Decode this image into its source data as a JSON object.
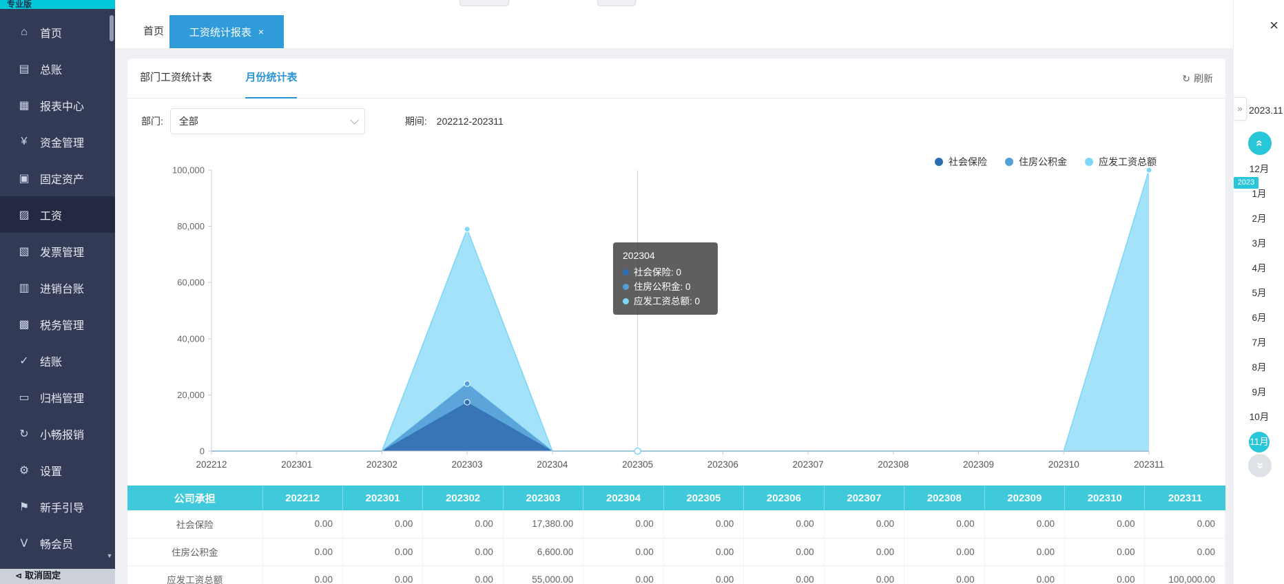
{
  "app": {
    "edition": "专业版",
    "close": "×",
    "collapse": "»"
  },
  "topbar": {
    "tabs": [
      {
        "label": "首页",
        "active": false
      },
      {
        "label": "工资统计报表",
        "active": true,
        "close": "×"
      }
    ]
  },
  "sidebar": {
    "items": [
      {
        "label": "首页",
        "icon": "home",
        "active": false
      },
      {
        "label": "总账",
        "icon": "general-ledger",
        "active": false
      },
      {
        "label": "报表中心",
        "icon": "report-center",
        "active": false
      },
      {
        "label": "资金管理",
        "icon": "fund-management",
        "active": false
      },
      {
        "label": "固定资产",
        "icon": "fixed-assets",
        "active": false
      },
      {
        "label": "工资",
        "icon": "salary",
        "active": true
      },
      {
        "label": "发票管理",
        "icon": "invoice-management",
        "active": false
      },
      {
        "label": "进销台账",
        "icon": "purchase-sales-ledger",
        "active": false
      },
      {
        "label": "税务管理",
        "icon": "tax-management",
        "active": false
      },
      {
        "label": "结账",
        "icon": "closing",
        "active": false
      },
      {
        "label": "归档管理",
        "icon": "archive-management",
        "active": false
      },
      {
        "label": "小畅报销",
        "icon": "reimbursement",
        "active": false
      },
      {
        "label": "设置",
        "icon": "settings",
        "active": false
      },
      {
        "label": "新手引导",
        "icon": "beginner-guide",
        "active": false
      },
      {
        "label": "畅会员",
        "icon": "member",
        "active": false
      }
    ],
    "pin_toggle": "取消固定"
  },
  "icon_glyphs": {
    "home": "⌂",
    "general-ledger": "▤",
    "report-center": "▦",
    "fund-management": "¥",
    "fixed-assets": "▣",
    "salary": "▨",
    "invoice-management": "▧",
    "purchase-sales-ledger": "▥",
    "tax-management": "▩",
    "closing": "✓",
    "archive-management": "▭",
    "reimbursement": "↻",
    "settings": "⚙",
    "beginner-guide": "⚑",
    "member": "Ⅴ",
    "pin": "⊲",
    "refresh": "↻",
    "scroll-down": "▼"
  },
  "report": {
    "sub_tabs": [
      {
        "label": "部门工资统计表",
        "active": false
      },
      {
        "label": "月份统计表",
        "active": true
      }
    ],
    "refresh_label": "刷新",
    "filters": {
      "department_label": "部门:",
      "department_value": "全部",
      "period_label": "期间:",
      "period_value": "202212-202311"
    }
  },
  "chart_data": {
    "type": "area",
    "stacked": true,
    "x": [
      "202212",
      "202301",
      "202302",
      "202303",
      "202304",
      "202305",
      "202306",
      "202307",
      "202308",
      "202309",
      "202310",
      "202311"
    ],
    "series": [
      {
        "name": "社会保险",
        "color": "#2d6eb3",
        "values": [
          0,
          0,
          0,
          17380,
          0,
          0,
          0,
          0,
          0,
          0,
          0,
          0
        ]
      },
      {
        "name": "住房公积金",
        "color": "#53a0d8",
        "values": [
          0,
          0,
          0,
          6600,
          0,
          0,
          0,
          0,
          0,
          0,
          0,
          0
        ]
      },
      {
        "name": "应发工资总额",
        "color": "#7fd7f7",
        "values": [
          0,
          0,
          0,
          55000,
          0,
          0,
          0,
          0,
          0,
          0,
          0,
          100000
        ]
      }
    ],
    "ylim": [
      0,
      100000
    ],
    "yticks": [
      0,
      20000,
      40000,
      60000,
      80000,
      100000
    ],
    "grid": false,
    "legend_position": "top-right",
    "tooltip": {
      "title": "202304",
      "anchor_index": 5,
      "items": [
        {
          "name": "社会保险",
          "value": "0"
        },
        {
          "name": "住房公积金",
          "value": "0"
        },
        {
          "name": "应发工资总额",
          "value": "0"
        }
      ]
    }
  },
  "table": {
    "headers": [
      "公司承担",
      "202212",
      "202301",
      "202302",
      "202303",
      "202304",
      "202305",
      "202306",
      "202307",
      "202308",
      "202309",
      "202310",
      "202311"
    ],
    "rows": [
      {
        "label": "社会保险",
        "values": [
          "0.00",
          "0.00",
          "0.00",
          "17,380.00",
          "0.00",
          "0.00",
          "0.00",
          "0.00",
          "0.00",
          "0.00",
          "0.00",
          "0.00"
        ]
      },
      {
        "label": "住房公积金",
        "values": [
          "0.00",
          "0.00",
          "0.00",
          "6,600.00",
          "0.00",
          "0.00",
          "0.00",
          "0.00",
          "0.00",
          "0.00",
          "0.00",
          "0.00"
        ]
      },
      {
        "label": "应发工资总额",
        "values": [
          "0.00",
          "0.00",
          "0.00",
          "55,000.00",
          "0.00",
          "0.00",
          "0.00",
          "0.00",
          "0.00",
          "0.00",
          "0.00",
          "100,000.00"
        ]
      }
    ]
  },
  "date_rail": {
    "current": "2023.11",
    "year_badge": "2023",
    "months": [
      "12月",
      "1月",
      "2月",
      "3月",
      "4月",
      "5月",
      "6月",
      "7月",
      "8月",
      "9月",
      "10月",
      "11月"
    ],
    "active_month": "11月"
  }
}
